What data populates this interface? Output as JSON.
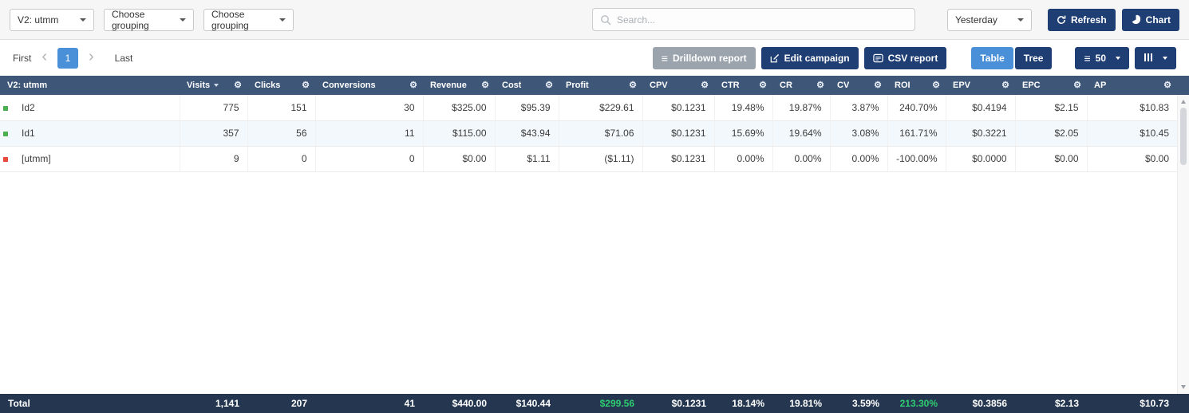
{
  "toolbar": {
    "campaign_select_value": "V2: utmm",
    "grouping_select_1": "Choose grouping",
    "grouping_select_2": "Choose grouping",
    "search_placeholder": "Search...",
    "date_range_value": "Yesterday",
    "refresh_label": "Refresh",
    "chart_label": "Chart"
  },
  "pagination": {
    "first_label": "First",
    "current_page": "1",
    "last_label": "Last"
  },
  "actions": {
    "drilldown_label": "Drilldown report",
    "edit_campaign_label": "Edit campaign",
    "csv_label": "CSV report",
    "table_label": "Table",
    "tree_label": "Tree",
    "page_size": "50"
  },
  "colors": {
    "accent_blue": "#4a90d9",
    "navy_button": "#1f3e74",
    "header_bg": "#3e5779",
    "total_bg": "#253750",
    "positive": "#27ae60",
    "negative": "#e74c3c",
    "indicator_green": "#4caf50",
    "indicator_red": "#e74c3c"
  },
  "table": {
    "columns": [
      {
        "label": "V2: utmm"
      },
      {
        "label": "Visits",
        "sorted": true
      },
      {
        "label": "Clicks"
      },
      {
        "label": "Conversions"
      },
      {
        "label": "Revenue"
      },
      {
        "label": "Cost"
      },
      {
        "label": "Profit"
      },
      {
        "label": "CPV"
      },
      {
        "label": "CTR"
      },
      {
        "label": "CR"
      },
      {
        "label": "CV"
      },
      {
        "label": "ROI"
      },
      {
        "label": "EPV"
      },
      {
        "label": "EPC"
      },
      {
        "label": "AP"
      }
    ],
    "rows": [
      {
        "status": "green",
        "name": "Id2",
        "values": [
          "775",
          "151",
          "30",
          "$325.00",
          "$95.39",
          "$229.61",
          "$0.1231",
          "19.48%",
          "19.87%",
          "3.87%",
          "240.70%",
          "$0.4194",
          "$2.15",
          "$10.83"
        ],
        "value_colors": {
          "5": "pos",
          "10": "pos"
        }
      },
      {
        "status": "green",
        "name": "Id1",
        "values": [
          "357",
          "56",
          "11",
          "$115.00",
          "$43.94",
          "$71.06",
          "$0.1231",
          "15.69%",
          "19.64%",
          "3.08%",
          "161.71%",
          "$0.3221",
          "$2.05",
          "$10.45"
        ],
        "value_colors": {
          "5": "pos",
          "10": "pos"
        }
      },
      {
        "status": "red",
        "name": "[utmm]",
        "values": [
          "9",
          "0",
          "0",
          "$0.00",
          "$1.11",
          "($1.11)",
          "$0.1231",
          "0.00%",
          "0.00%",
          "0.00%",
          "-100.00%",
          "$0.0000",
          "$0.00",
          "$0.00"
        ],
        "value_colors": {
          "5": "neg",
          "10": "neg"
        }
      }
    ],
    "total": {
      "label": "Total",
      "values": [
        "1,141",
        "207",
        "41",
        "$440.00",
        "$140.44",
        "$299.56",
        "$0.1231",
        "18.14%",
        "19.81%",
        "3.59%",
        "213.30%",
        "$0.3856",
        "$2.13",
        "$10.73"
      ],
      "value_colors": {
        "5": "pos",
        "10": "pos"
      }
    }
  }
}
